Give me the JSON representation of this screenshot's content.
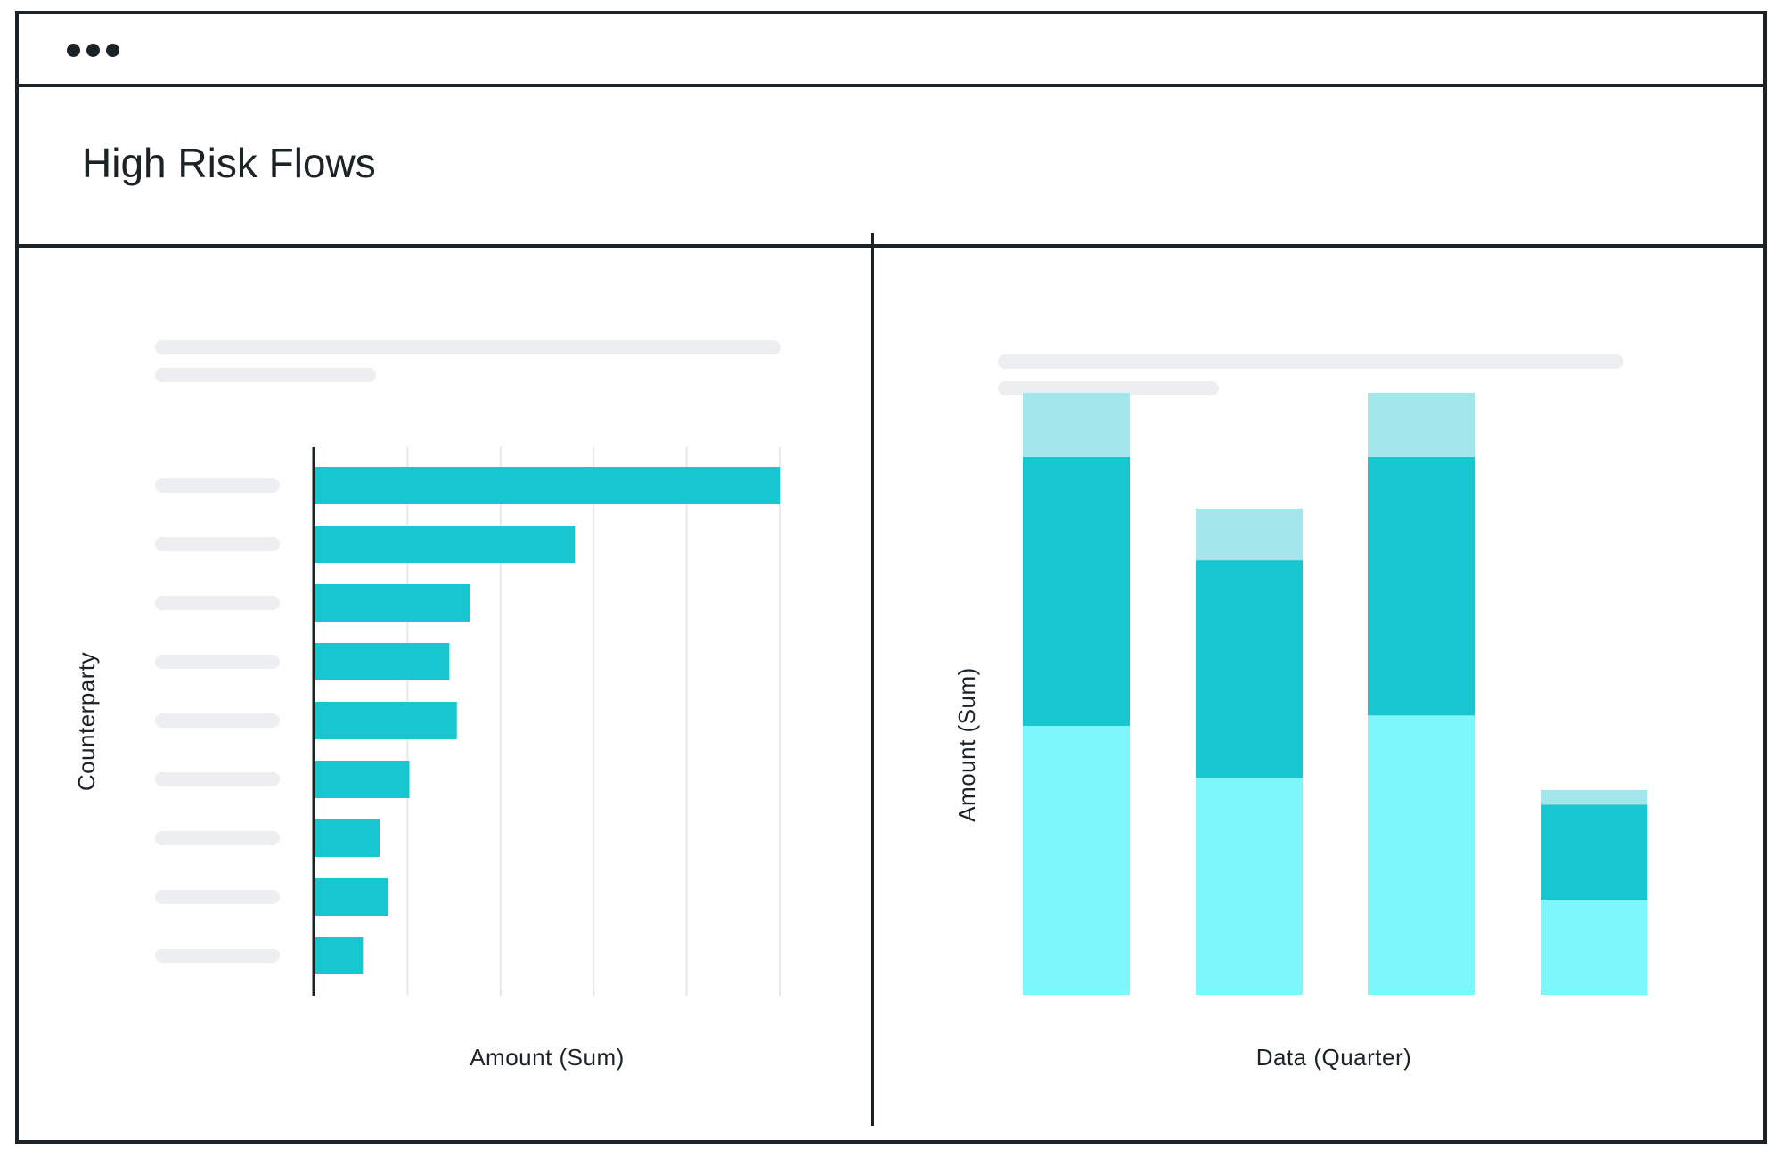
{
  "window": {
    "title": "High Risk Flows"
  },
  "colors": {
    "frame": "#1b2327",
    "placeholder": "#eceef0",
    "bar": "#17c6cf",
    "seg_bottom": "#7ef7fc",
    "seg_middle": "#17c6cf",
    "seg_top": "#a1e7ec",
    "grid": "#e6e8ea"
  },
  "chart_data": [
    {
      "type": "bar",
      "orientation": "horizontal",
      "title": "",
      "xlabel": "Amount (Sum)",
      "ylabel": "Counterparty",
      "categories": [
        "",
        "",
        "",
        "",
        "",
        "",
        "",
        "",
        ""
      ],
      "values": [
        5.0,
        2.8,
        1.67,
        1.45,
        1.53,
        1.02,
        0.7,
        0.79,
        0.52
      ],
      "xlim": [
        0,
        5
      ],
      "grid": true
    },
    {
      "type": "bar",
      "stacked": true,
      "title": "",
      "xlabel": "Data (Quarter)",
      "ylabel": "Amount (Sum)",
      "categories": [
        "",
        "",
        "",
        ""
      ],
      "series": [
        {
          "values": [
            260,
            210,
            270,
            92
          ]
        },
        {
          "values": [
            260,
            210,
            250,
            92
          ]
        },
        {
          "values": [
            62,
            50,
            62,
            14
          ]
        }
      ],
      "ylim": [
        0,
        600
      ],
      "grid": false
    }
  ]
}
